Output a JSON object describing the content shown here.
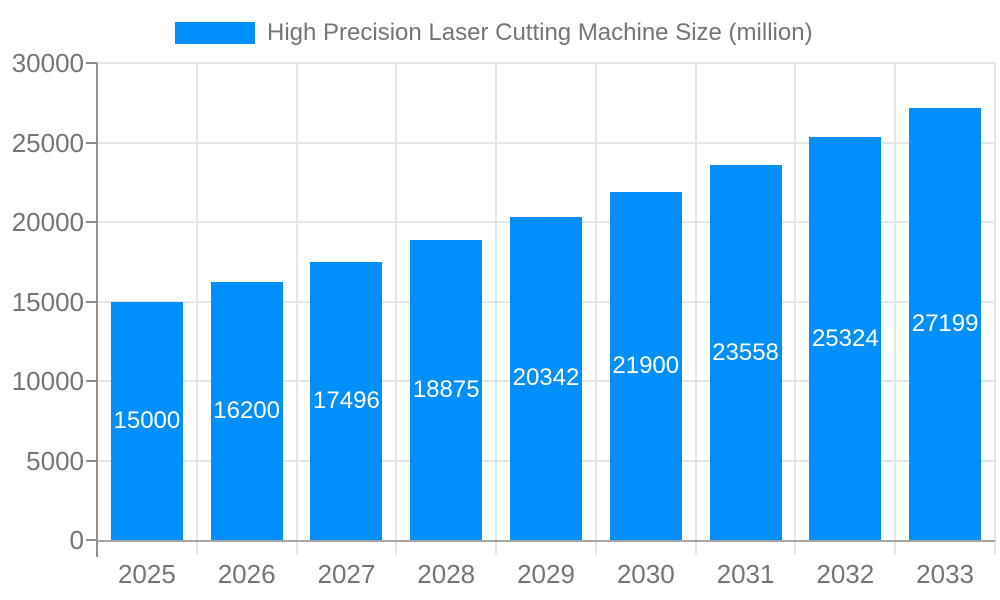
{
  "legend": {
    "label": "High Precision Laser Cutting Machine Size (million)"
  },
  "chart_data": {
    "type": "bar",
    "title": "High Precision Laser Cutting Machine Size (million)",
    "categories": [
      "2025",
      "2026",
      "2027",
      "2028",
      "2029",
      "2030",
      "2031",
      "2032",
      "2033"
    ],
    "values": [
      15000,
      16200,
      17496,
      18875,
      20342,
      21900,
      23558,
      25324,
      27199
    ],
    "xlabel": "",
    "ylabel": "",
    "ylim": [
      0,
      30000
    ],
    "yticks": [
      0,
      5000,
      10000,
      15000,
      20000,
      25000,
      30000
    ],
    "grid": true,
    "legend_position": "top",
    "data_labels": "inside-center",
    "colors": {
      "bar": "#008FFB",
      "bar_label": "#ffffff",
      "axis_text": "#757575",
      "gridline": "#e6e6e6",
      "axis_line": "#8f8f8f",
      "baseline": "#a6a6a6",
      "background": "#ffffff"
    }
  }
}
